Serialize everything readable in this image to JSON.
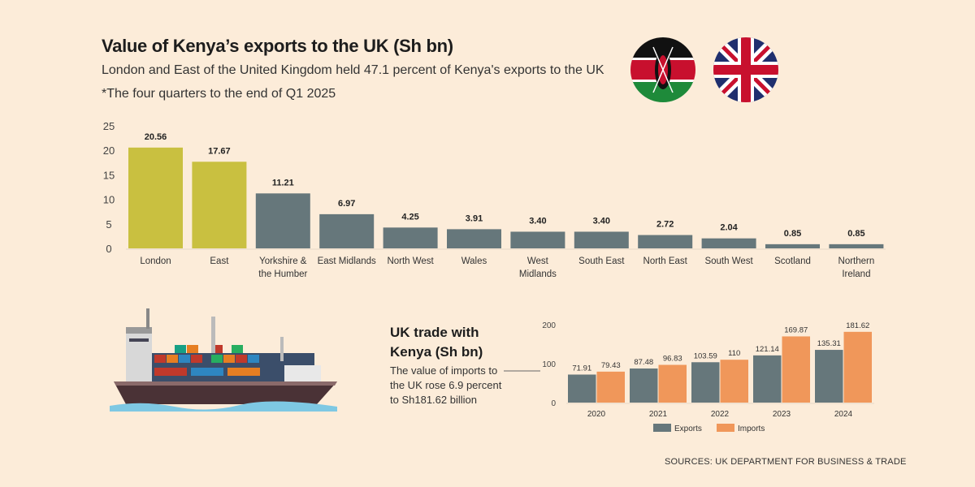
{
  "title": "Value of Kenya’s exports to the UK  (Sh bn)",
  "subtitle": "London and East of the United Kingdom held 47.1 percent of Kenya's exports to the UK",
  "note": "*The four quarters to the end of Q1 2025",
  "source": "SOURCES: UK DEPARTMENT FOR BUSINESS & TRADE",
  "flags": [
    "kenya-flag",
    "uk-flag"
  ],
  "colors": {
    "background": "#fcecd9",
    "highlight": "#c9c040",
    "exports": "#66777b",
    "imports": "#f0975a"
  },
  "chart_data": [
    {
      "type": "bar",
      "title": "Value of Kenya’s exports to the UK  (Sh bn)",
      "categories": [
        [
          "London"
        ],
        [
          "East"
        ],
        [
          "Yorkshire &",
          "the Humber"
        ],
        [
          "East Midlands"
        ],
        [
          "North West"
        ],
        [
          "Wales"
        ],
        [
          "West",
          "Midlands"
        ],
        [
          "South East"
        ],
        [
          "North East"
        ],
        [
          "South West"
        ],
        [
          "Scotland"
        ],
        [
          "Northern",
          "Ireland"
        ]
      ],
      "values": [
        20.56,
        17.67,
        11.21,
        6.97,
        4.25,
        3.91,
        3.4,
        3.4,
        2.72,
        2.04,
        0.85,
        0.85
      ],
      "value_labels": [
        "20.56",
        "17.67",
        "11.21",
        "6.97",
        "4.25",
        "3.91",
        "3.40",
        "3.40",
        "2.72",
        "2.04",
        "0.85",
        "0.85"
      ],
      "highlighted": [
        "London",
        "East"
      ],
      "yticks": [
        0,
        5,
        10,
        15,
        20,
        25
      ],
      "ylim": [
        0,
        25
      ],
      "grid": false
    },
    {
      "type": "bar",
      "title": "UK trade with Kenya (Sh bn)",
      "annotation": "The value of imports to the UK rose 6.9 percent to Sh181.62 billion",
      "categories": [
        "2020",
        "2021",
        "2022",
        "2023",
        "2024"
      ],
      "series": [
        {
          "name": "Exports",
          "values": [
            71.91,
            87.48,
            103.59,
            121.14,
            135.31
          ],
          "labels": [
            "71.91",
            "87.48",
            "103.59",
            "121.14",
            "135.31"
          ]
        },
        {
          "name": "Imports",
          "values": [
            79.43,
            96.83,
            110,
            169.87,
            181.62
          ],
          "labels": [
            "79.43",
            "96.83",
            "110",
            "169.87",
            "181.62"
          ]
        }
      ],
      "yticks": [
        0,
        100,
        200
      ],
      "ylim": [
        0,
        200
      ],
      "legend": "bottom",
      "grid": false
    }
  ]
}
